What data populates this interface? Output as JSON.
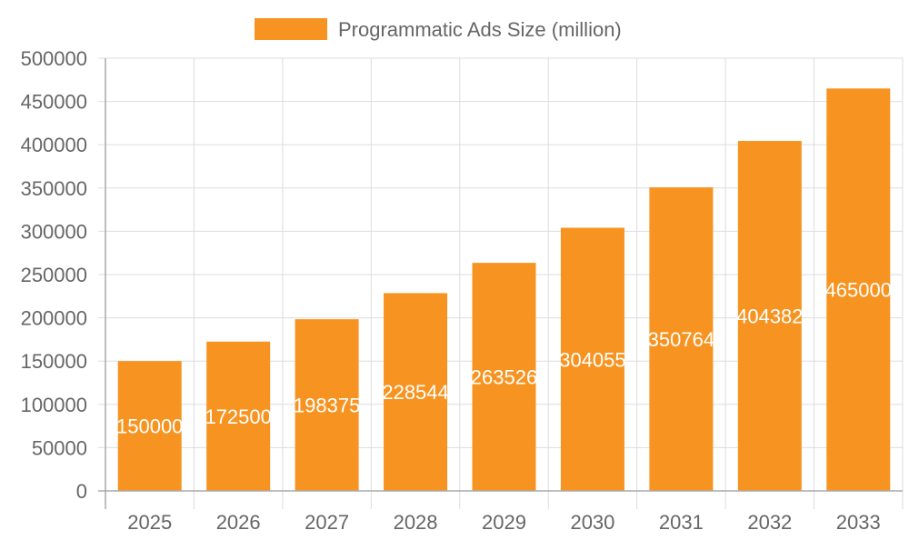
{
  "chart_data": {
    "type": "bar",
    "title": "",
    "xlabel": "",
    "ylabel": "",
    "categories": [
      "2025",
      "2026",
      "2027",
      "2028",
      "2029",
      "2030",
      "2031",
      "2032",
      "2033"
    ],
    "series": [
      {
        "name": "Programmatic Ads Size (million)",
        "color": "#f79421",
        "values": [
          150000,
          172500,
          198375,
          228544,
          263526,
          304055,
          350764,
          404382,
          465000
        ]
      }
    ],
    "ylim": [
      0,
      500000
    ],
    "yticks": [
      0,
      50000,
      100000,
      150000,
      200000,
      250000,
      300000,
      350000,
      400000,
      450000,
      500000
    ],
    "grid": true,
    "legend": "top",
    "data_labels": true
  }
}
